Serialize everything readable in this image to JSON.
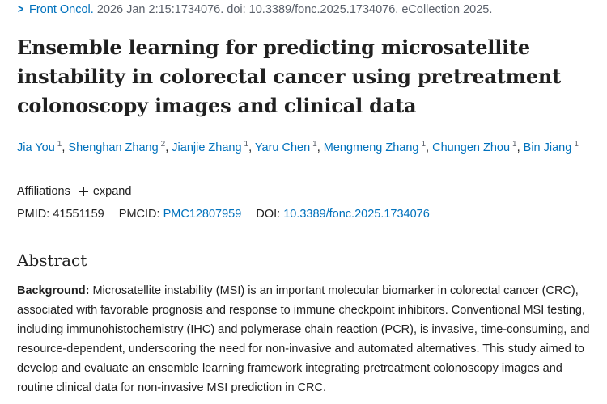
{
  "citation": {
    "journal": "Front Oncol.",
    "details": "2026 Jan 2:15:1734076. doi: 10.3389/fonc.2025.1734076. eCollection 2025."
  },
  "title": "Ensemble learning for predicting microsatellite instability in colorectal cancer using pretreatment colonoscopy images and clinical data",
  "authors": [
    {
      "name": "Jia You",
      "aff": "1"
    },
    {
      "name": "Shenghan Zhang",
      "aff": "2"
    },
    {
      "name": "Jianjie Zhang",
      "aff": "1"
    },
    {
      "name": "Yaru Chen",
      "aff": "1"
    },
    {
      "name": "Mengmeng Zhang",
      "aff": "1"
    },
    {
      "name": "Chungen Zhou",
      "aff": "1"
    },
    {
      "name": "Bin Jiang",
      "aff": "1"
    }
  ],
  "affiliations": {
    "label": "Affiliations",
    "expand_label": "expand"
  },
  "ids": {
    "pmid_label": "PMID:",
    "pmid": "41551159",
    "pmcid_label": "PMCID:",
    "pmcid": "PMC12807959",
    "doi_label": "DOI:",
    "doi": "10.3389/fonc.2025.1734076"
  },
  "abstract": {
    "heading": "Abstract",
    "background_label": "Background:",
    "background_text": " Microsatellite instability (MSI) is an important molecular biomarker in colorectal cancer (CRC), associated with favorable prognosis and response to immune checkpoint inhibitors. Conventional MSI testing, including immunohistochemistry (IHC) and polymerase chain reaction (PCR), is invasive, time-consuming, and resource-dependent, underscoring the need for non-invasive and automated alternatives. This study aimed to develop and evaluate an ensemble learning framework integrating pretreatment colonoscopy images and routine clinical data for non-invasive MSI prediction in CRC."
  },
  "colors": {
    "link": "#0071bc",
    "text": "#212121",
    "muted": "#5b616b"
  }
}
